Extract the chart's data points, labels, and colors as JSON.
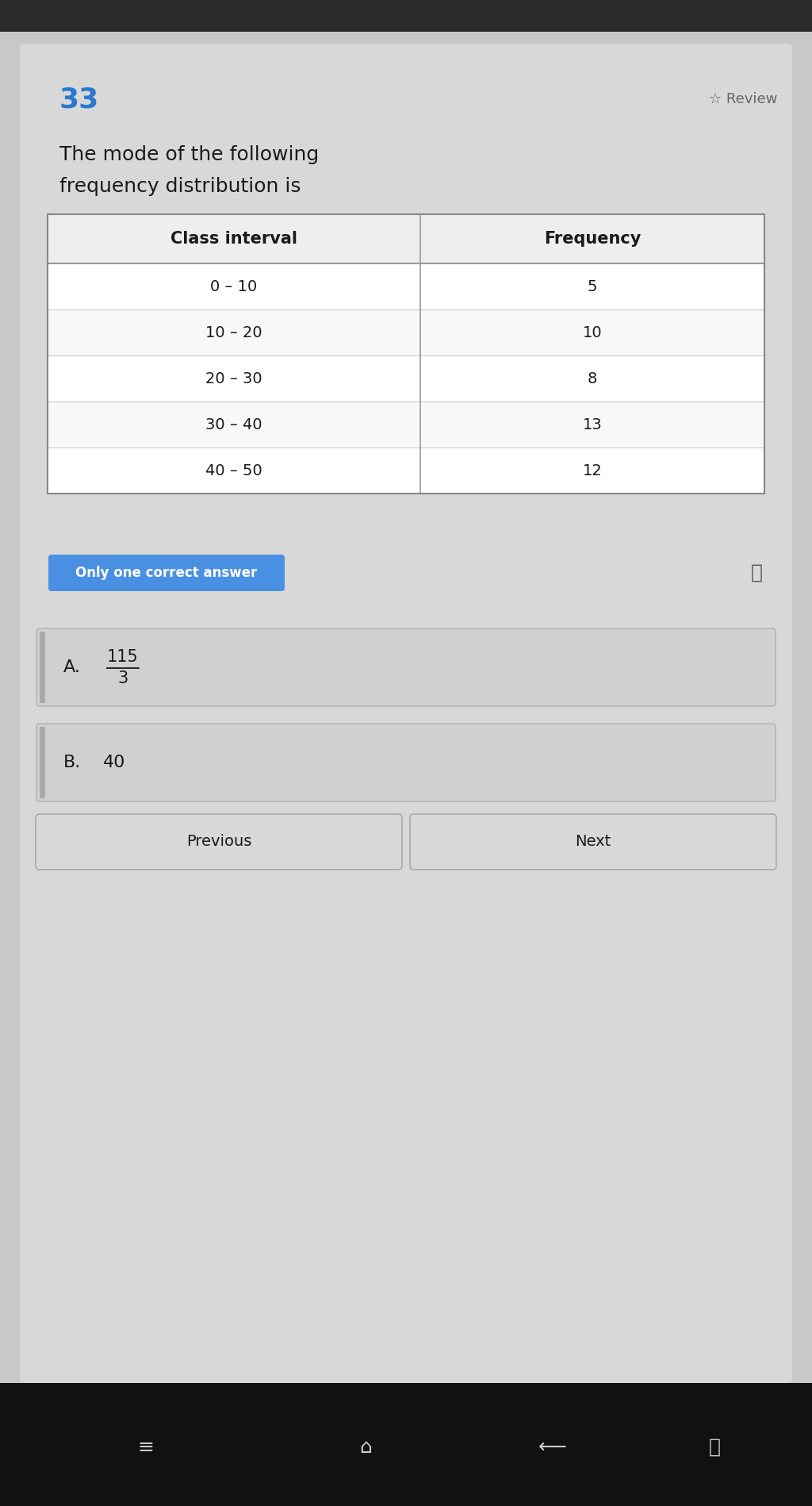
{
  "question_number": "33",
  "review_text": "Review",
  "question_text_line1": "The mode of the following",
  "question_text_line2": "frequency distribution is",
  "table_headers": [
    "Class interval",
    "Frequency"
  ],
  "table_rows": [
    [
      "0 – 10",
      "5"
    ],
    [
      "10 – 20",
      "10"
    ],
    [
      "20 – 30",
      "8"
    ],
    [
      "30 – 40",
      "13"
    ],
    [
      "40 – 50",
      "12"
    ]
  ],
  "badge_text": "Only one correct answer",
  "badge_color": "#4a90e2",
  "option_A_label": "A.",
  "option_A_numerator": "115",
  "option_A_denominator": "3",
  "option_B_label": "B.",
  "option_B_value": "40",
  "btn_previous": "Previous",
  "btn_next": "Next",
  "bg_top_color": "#2a2a2a",
  "bg_main_color": "#c8c8c8",
  "bg_bottom_color": "#1a1a1a",
  "card_color": "#d8d8d8",
  "table_bg": "#ffffff",
  "header_bg": "#eeeeee",
  "text_dark": "#1a1a1a",
  "text_medium": "#444444",
  "question_number_color": "#2979d0",
  "review_star_color": "#666666",
  "option_box_color": "#d0d0d0",
  "option_border_color": "#b0b0b0",
  "option_accent_color": "#aaaaaa",
  "btn_border_color": "#aaaaaa",
  "info_icon_color": "#555555",
  "nav_bar_color": "#111111",
  "nav_icon_color": "#cccccc",
  "font_size_question_num": 26,
  "font_size_review": 13,
  "font_size_question": 18,
  "font_size_table_header": 15,
  "font_size_table_cell": 14,
  "font_size_badge": 12,
  "font_size_option_label": 16,
  "font_size_option_value": 15,
  "font_size_btn": 14,
  "font_size_nav": 18
}
